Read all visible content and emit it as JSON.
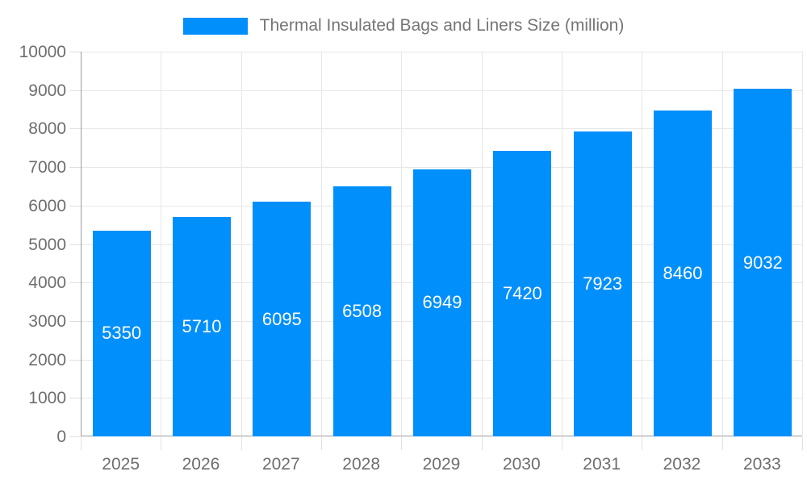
{
  "legend": {
    "label": "Thermal Insulated Bags and Liners Size (million)"
  },
  "chart_data": {
    "type": "bar",
    "categories": [
      "2025",
      "2026",
      "2027",
      "2028",
      "2029",
      "2030",
      "2031",
      "2032",
      "2033"
    ],
    "values": [
      5350,
      5710,
      6095,
      6508,
      6949,
      7420,
      7923,
      8460,
      9032
    ],
    "title": "Thermal Insulated Bags and Liners Size (million)",
    "xlabel": "",
    "ylabel": "",
    "ylim": [
      0,
      10000
    ],
    "ytick_step": 1000,
    "grid": true,
    "legend_position": "top",
    "bar_color": "#008FFB",
    "bar_label_color": "#ffffff",
    "axis_text_color": "#6e6e6e",
    "grid_color": "#e7e7e7",
    "axis_line_color": "#9b9b9b"
  }
}
